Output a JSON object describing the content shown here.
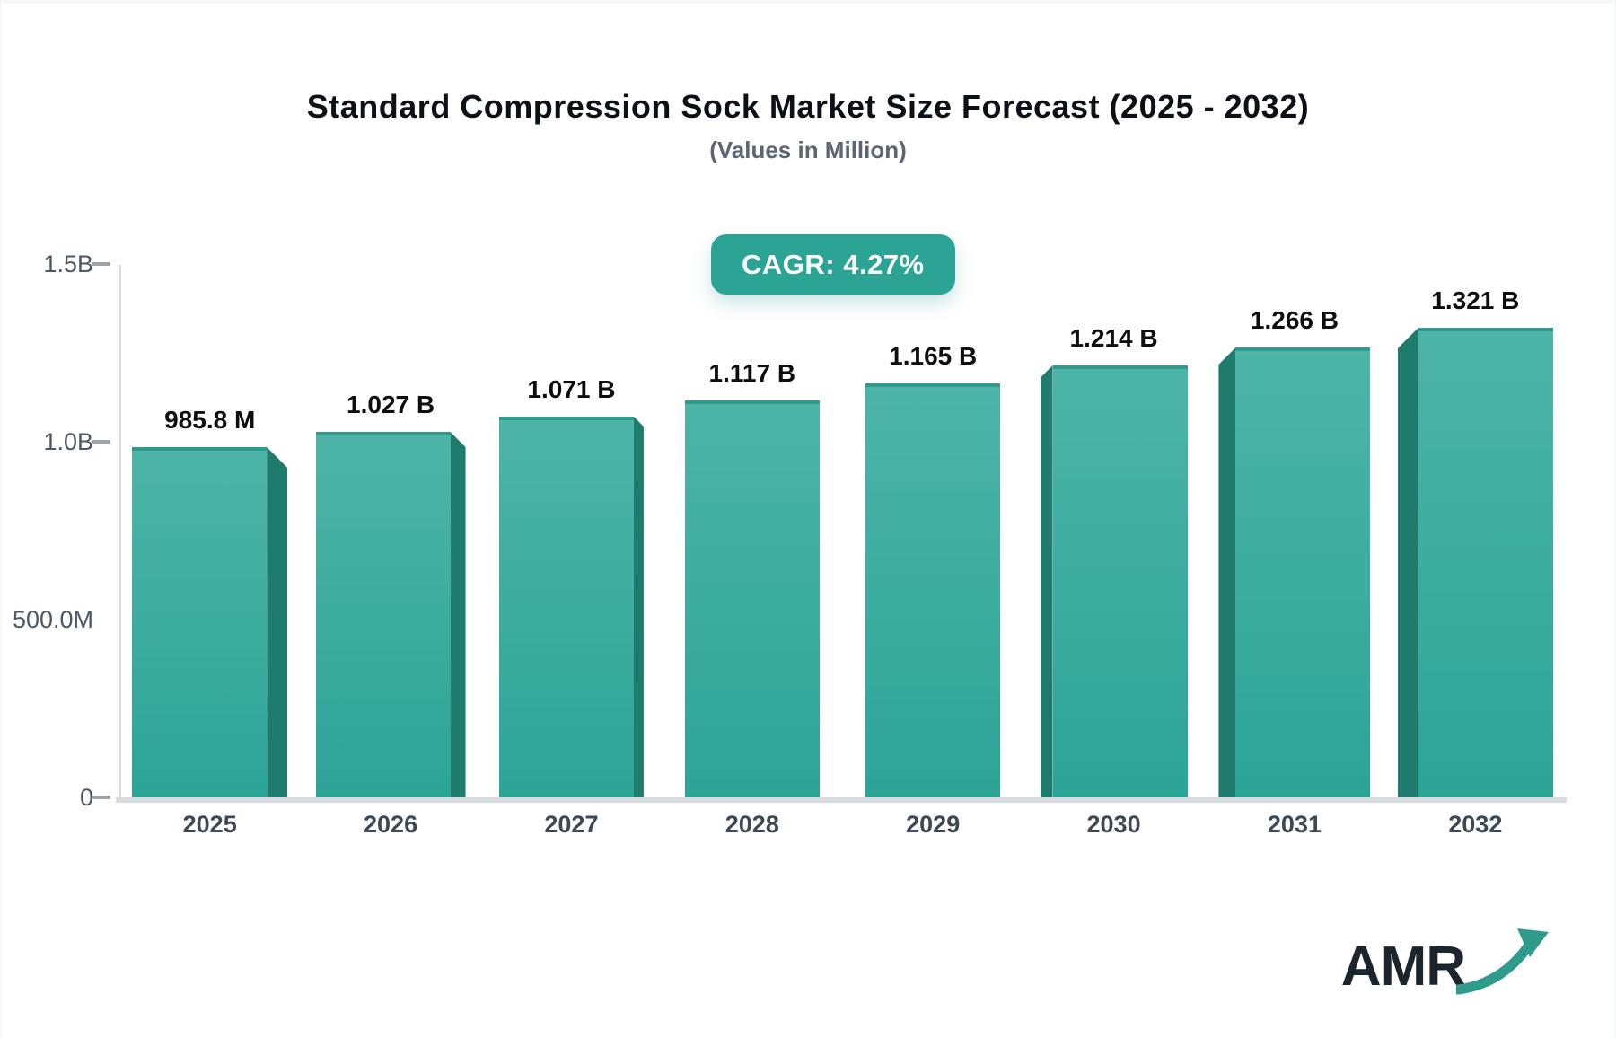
{
  "page": {
    "title": "Standard Compression Sock Market Size Forecast (2025 - 2032)",
    "subtitle": "(Values in Million)",
    "cagr_badge": "CAGR: 4.27%",
    "logo_text": "AMR",
    "colors": {
      "accent_teal": "#2BA495",
      "bar_face_top": "#4DB4A7",
      "bar_face_bottom": "#2BA496",
      "bar_side_dark": "#1F7B6E",
      "axis_line": "#D8DBDF",
      "title_text": "#0D1117",
      "subtitle_text": "#5C6672",
      "value_label_text": "#0D0D12",
      "axis_label_text": "#4B5866"
    }
  },
  "chart_data": {
    "type": "bar",
    "title": "Standard Compression Sock Market Size Forecast (2025 - 2032)",
    "subtitle": "(Values in Million)",
    "cagr_label": "CAGR: 4.27%",
    "categories": [
      "2025",
      "2026",
      "2027",
      "2028",
      "2029",
      "2030",
      "2031",
      "2032"
    ],
    "values_millions": [
      985.8,
      1027,
      1071,
      1117,
      1165,
      1214,
      1266,
      1321
    ],
    "value_labels": [
      "985.8 M",
      "1.027 B",
      "1.071 B",
      "1.117 B",
      "1.165 B",
      "1.214 B",
      "1.266 B",
      "1.321 B"
    ],
    "xlabel": "",
    "ylabel": "",
    "ylim": [
      0,
      1500
    ],
    "grid": false,
    "legend": false,
    "y_axis": {
      "min": 0,
      "max": 1500,
      "ticks": [
        {
          "label": "1.5B",
          "value": 1500,
          "dash": true
        },
        {
          "label": "1.0B",
          "value": 1000,
          "dash": true
        },
        {
          "label": "500.0M",
          "value": 500,
          "dash": false
        },
        {
          "label": "0",
          "value": 0,
          "dash": true
        }
      ]
    }
  }
}
